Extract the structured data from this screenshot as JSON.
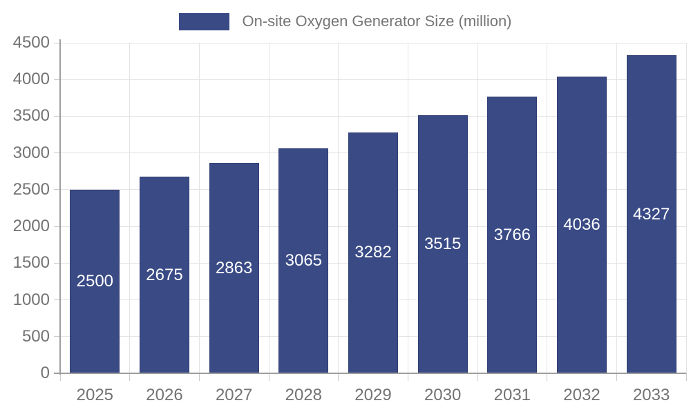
{
  "legend": {
    "label": "On-site Oxygen Generator Size (million)",
    "swatch_icon": "legend-swatch"
  },
  "colors": {
    "bar": "#394a85",
    "bar_edge": "#333f73",
    "grid": "#e3e3e3",
    "axis": "#9e9e9e",
    "tick": "#c9c9c9",
    "tick_text": "#737373",
    "legend_text": "#757575",
    "value_label": "#ffffff",
    "background": "#ffffff"
  },
  "chart_data": {
    "type": "bar",
    "title": "On-site Oxygen Generator Size (million)",
    "series_name": "On-site Oxygen Generator Size (million)",
    "categories": [
      "2025",
      "2026",
      "2027",
      "2028",
      "2029",
      "2030",
      "2031",
      "2032",
      "2033"
    ],
    "values": [
      2500,
      2675,
      2863,
      3065,
      3282,
      3515,
      3766,
      4036,
      4327
    ],
    "value_labels": [
      "2500",
      "2675",
      "2863",
      "3065",
      "3282",
      "3515",
      "3766",
      "4036",
      "4327"
    ],
    "xlabel": "",
    "ylabel": "",
    "ylim": [
      0,
      4500
    ],
    "ytick_step": 500,
    "yticks": [
      0,
      500,
      1000,
      1500,
      2000,
      2500,
      3000,
      3500,
      4000,
      4500
    ],
    "grid": true,
    "grid_vertical": true,
    "legend_position": "top-center",
    "value_labels_position": "inside-center"
  }
}
